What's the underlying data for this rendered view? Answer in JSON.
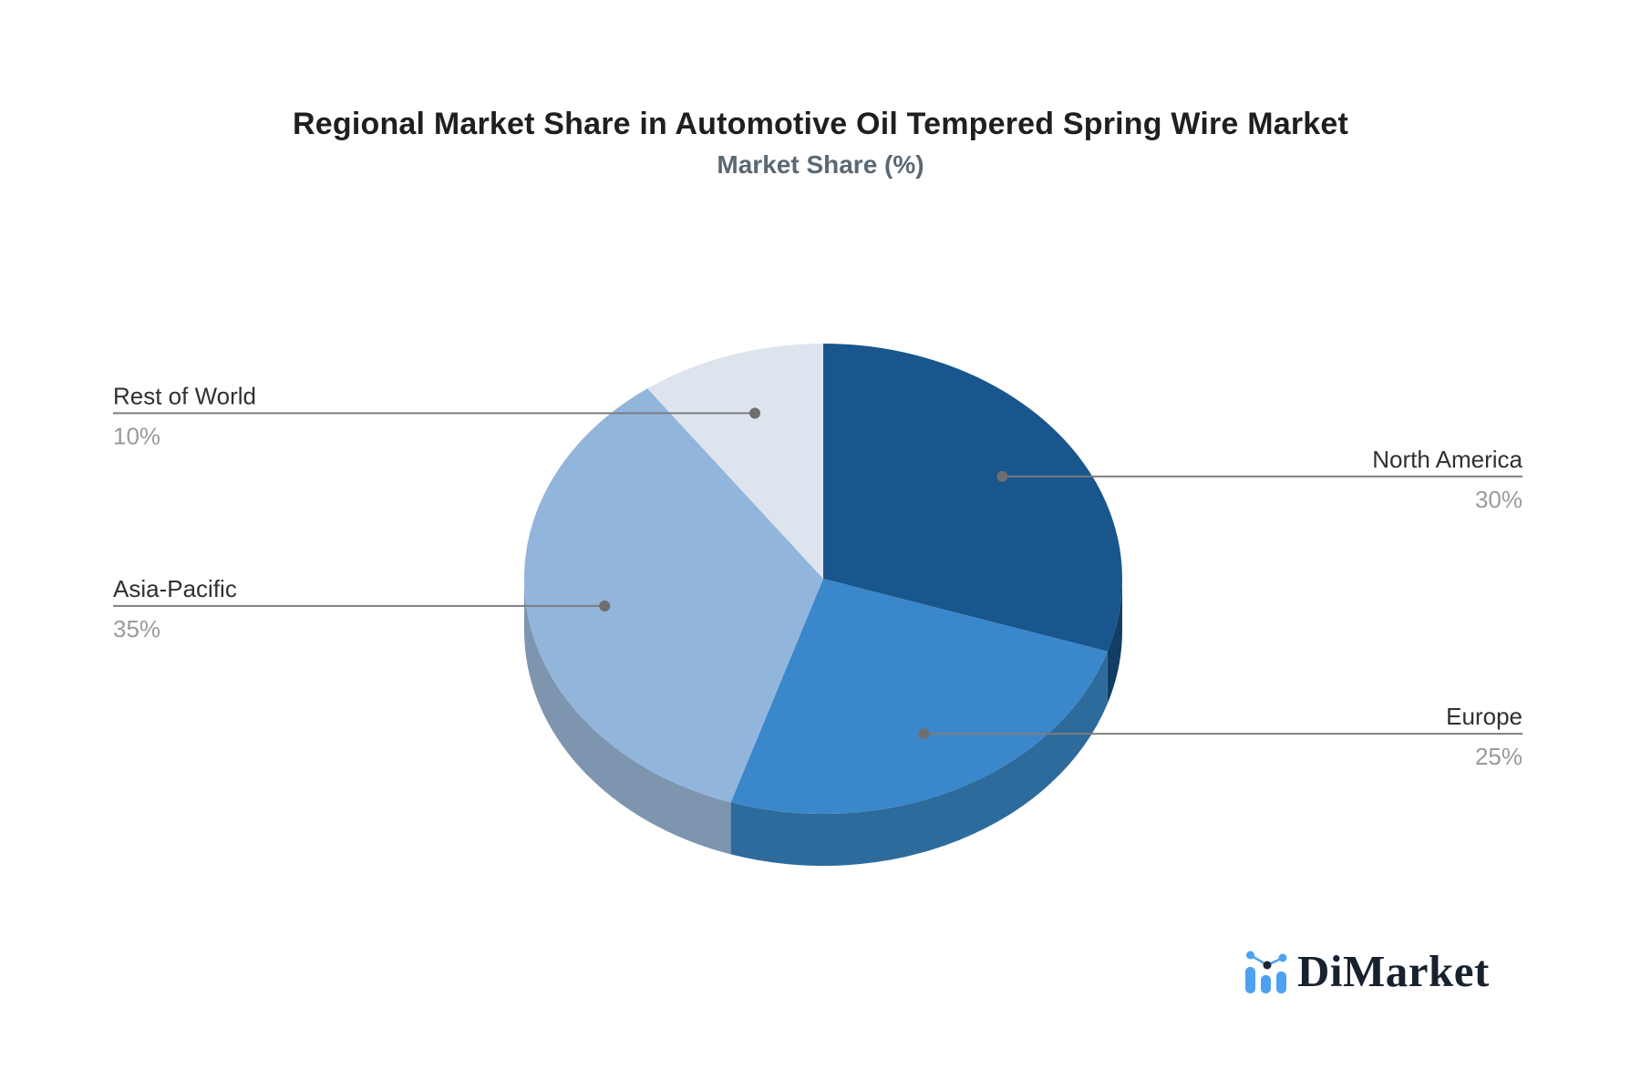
{
  "header": {
    "title": "Regional Market Share in Automotive Oil Tempered Spring Wire Market",
    "subtitle": "Market Share (%)"
  },
  "palette": {
    "title_color": "#1F1F1F",
    "subtitle_color": "#5B6872",
    "background": "#FFFFFF"
  },
  "chart_data": {
    "type": "pie",
    "title": "Regional Market Share in Automotive Oil Tempered Spring Wire Market",
    "subtitle": "Market Share (%)",
    "unit": "%",
    "effect": "3d-depth",
    "rotation": "clockwise-from-top",
    "legend": "none (leader-line labels)",
    "slices": [
      {
        "label": "North America",
        "value": 30,
        "pct_label": "30%",
        "color": "#19568D",
        "side_color": "#123E63"
      },
      {
        "label": "Europe",
        "value": 25,
        "pct_label": "25%",
        "color": "#3A87CB",
        "side_color": "#2E6B9D"
      },
      {
        "label": "Asia-Pacific",
        "value": 35,
        "pct_label": "35%",
        "color": "#92B5DC",
        "side_color": "#7E95AF"
      },
      {
        "label": "Rest of World",
        "value": 10,
        "pct_label": "10%",
        "color": "#DDE4EE",
        "side_color": "#C2CCDB"
      }
    ],
    "label_style": {
      "name_color": "#303030",
      "pct_color": "#9A9A9A",
      "line_color": "#7D7D7D",
      "dot_color": "#6E6E6E"
    }
  },
  "branding": {
    "name": "DiMarket",
    "icon": "bar-line-chart-icon",
    "text_color": "#18222E",
    "icon_color": "#4DA1F1",
    "icon_dark_dot_color": "#1B2735"
  }
}
